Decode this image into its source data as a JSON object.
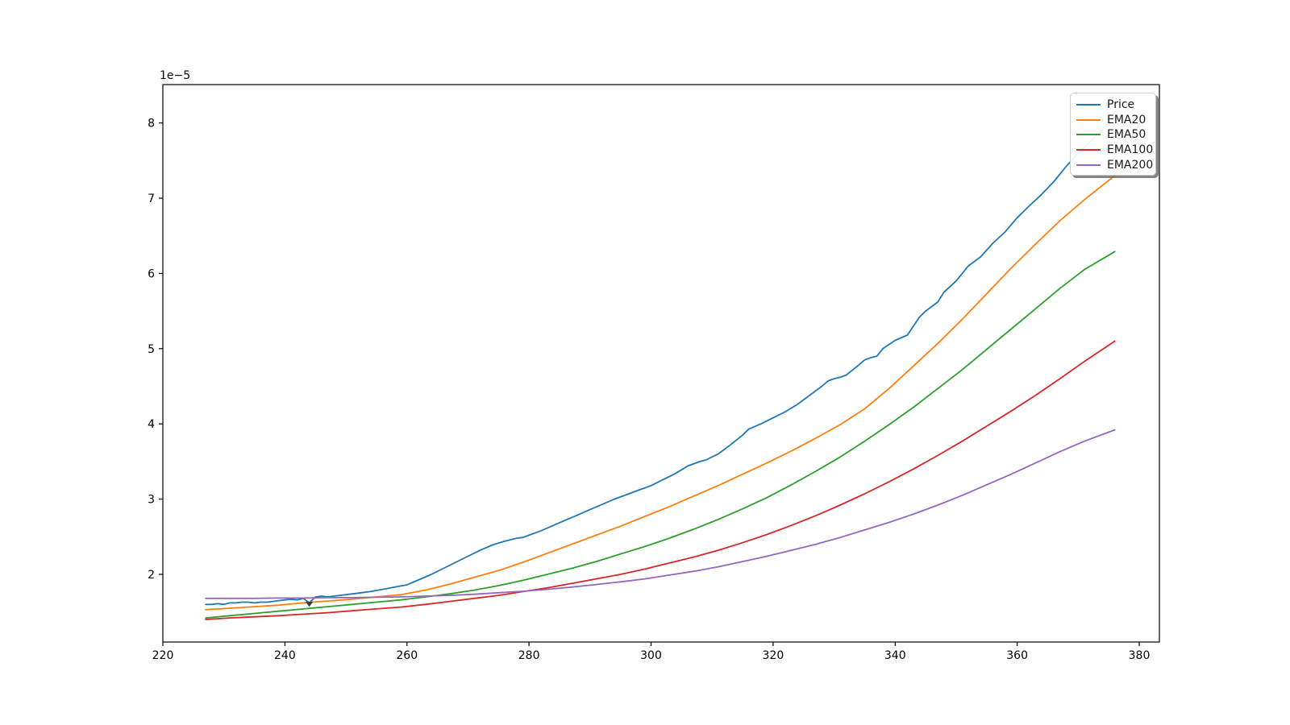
{
  "figure": {
    "background": "#ffffff",
    "spine_color": "#000000",
    "tick_color": "#000000",
    "offset_label": "1e−5"
  },
  "legend": {
    "items": [
      {
        "label": "Price",
        "color": "#1f77b4"
      },
      {
        "label": "EMA20",
        "color": "#ff7f0e"
      },
      {
        "label": "EMA50",
        "color": "#2ca02c"
      },
      {
        "label": "EMA100",
        "color": "#d62728"
      },
      {
        "label": "EMA200",
        "color": "#9467bd"
      }
    ],
    "position": "upper right"
  },
  "chart_data": {
    "type": "line",
    "title": "",
    "xlabel": "",
    "ylabel": "",
    "y_scale_factor": "1e-5",
    "grid": false,
    "legend_position": "upper right",
    "xlim": [
      220,
      383.3
    ],
    "ylim": [
      1.1,
      8.51
    ],
    "xticks": [
      220,
      240,
      260,
      280,
      300,
      320,
      340,
      360,
      380
    ],
    "yticks": [
      2,
      3,
      4,
      5,
      6,
      7,
      8
    ],
    "xtick_labels": [
      "220",
      "240",
      "260",
      "280",
      "300",
      "320",
      "340",
      "360",
      "380"
    ],
    "ytick_labels": [
      "2",
      "3",
      "4",
      "5",
      "6",
      "7",
      "8"
    ],
    "marker": {
      "type": "triangle-down",
      "color": "#3a3a3a",
      "x": 244,
      "y": 1.615
    },
    "series": [
      {
        "name": "Price",
        "color": "#1f77b4",
        "width": 1.8,
        "points": [
          [
            227,
            1.6
          ],
          [
            228,
            1.6
          ],
          [
            229,
            1.61
          ],
          [
            230,
            1.6
          ],
          [
            231,
            1.62
          ],
          [
            232,
            1.62
          ],
          [
            233,
            1.63
          ],
          [
            234,
            1.63
          ],
          [
            235,
            1.62
          ],
          [
            236,
            1.63
          ],
          [
            237,
            1.63
          ],
          [
            238,
            1.64
          ],
          [
            239,
            1.65
          ],
          [
            240,
            1.66
          ],
          [
            241,
            1.67
          ],
          [
            242,
            1.66
          ],
          [
            243,
            1.68
          ],
          [
            244,
            1.62
          ],
          [
            245,
            1.7
          ],
          [
            246,
            1.71
          ],
          [
            247,
            1.7
          ],
          [
            248,
            1.71
          ],
          [
            249,
            1.72
          ],
          [
            250,
            1.73
          ],
          [
            252,
            1.75
          ],
          [
            254,
            1.77
          ],
          [
            256,
            1.8
          ],
          [
            258,
            1.83
          ],
          [
            260,
            1.86
          ],
          [
            262,
            1.93
          ],
          [
            264,
            2.0
          ],
          [
            266,
            2.08
          ],
          [
            268,
            2.16
          ],
          [
            270,
            2.24
          ],
          [
            272,
            2.32
          ],
          [
            274,
            2.39
          ],
          [
            276,
            2.44
          ],
          [
            278,
            2.48
          ],
          [
            279,
            2.49
          ],
          [
            280,
            2.52
          ],
          [
            282,
            2.58
          ],
          [
            284,
            2.65
          ],
          [
            286,
            2.72
          ],
          [
            288,
            2.79
          ],
          [
            290,
            2.86
          ],
          [
            292,
            2.93
          ],
          [
            294,
            3.0
          ],
          [
            296,
            3.06
          ],
          [
            298,
            3.12
          ],
          [
            300,
            3.18
          ],
          [
            302,
            3.26
          ],
          [
            304,
            3.34
          ],
          [
            306,
            3.44
          ],
          [
            308,
            3.5
          ],
          [
            309,
            3.52
          ],
          [
            311,
            3.6
          ],
          [
            313,
            3.72
          ],
          [
            315,
            3.85
          ],
          [
            316,
            3.93
          ],
          [
            318,
            4.0
          ],
          [
            320,
            4.08
          ],
          [
            322,
            4.16
          ],
          [
            324,
            4.26
          ],
          [
            326,
            4.38
          ],
          [
            328,
            4.5
          ],
          [
            329,
            4.57
          ],
          [
            330,
            4.6
          ],
          [
            331,
            4.62
          ],
          [
            332,
            4.65
          ],
          [
            334,
            4.78
          ],
          [
            335,
            4.85
          ],
          [
            336,
            4.88
          ],
          [
            337,
            4.9
          ],
          [
            338,
            5.0
          ],
          [
            340,
            5.11
          ],
          [
            342,
            5.18
          ],
          [
            344,
            5.42
          ],
          [
            345,
            5.5
          ],
          [
            347,
            5.62
          ],
          [
            348,
            5.75
          ],
          [
            350,
            5.9
          ],
          [
            352,
            6.1
          ],
          [
            354,
            6.22
          ],
          [
            356,
            6.4
          ],
          [
            358,
            6.55
          ],
          [
            360,
            6.74
          ],
          [
            362,
            6.9
          ],
          [
            364,
            7.05
          ],
          [
            366,
            7.22
          ],
          [
            368,
            7.42
          ],
          [
            370,
            7.6
          ],
          [
            372,
            7.75
          ],
          [
            374,
            7.92
          ],
          [
            376,
            8.08
          ]
        ]
      },
      {
        "name": "EMA20",
        "color": "#ff7f0e",
        "width": 1.8,
        "points": [
          [
            227,
            1.53
          ],
          [
            231,
            1.55
          ],
          [
            235,
            1.57
          ],
          [
            239,
            1.59
          ],
          [
            243,
            1.62
          ],
          [
            247,
            1.645
          ],
          [
            251,
            1.67
          ],
          [
            255,
            1.7
          ],
          [
            259,
            1.73
          ],
          [
            263,
            1.79
          ],
          [
            267,
            1.87
          ],
          [
            271,
            1.96
          ],
          [
            275,
            2.05
          ],
          [
            279,
            2.16
          ],
          [
            283,
            2.28
          ],
          [
            287,
            2.4
          ],
          [
            291,
            2.52
          ],
          [
            295,
            2.64
          ],
          [
            299,
            2.77
          ],
          [
            303,
            2.9
          ],
          [
            307,
            3.04
          ],
          [
            311,
            3.18
          ],
          [
            315,
            3.33
          ],
          [
            319,
            3.48
          ],
          [
            323,
            3.64
          ],
          [
            327,
            3.81
          ],
          [
            331,
            3.99
          ],
          [
            335,
            4.2
          ],
          [
            339,
            4.47
          ],
          [
            343,
            4.77
          ],
          [
            347,
            5.07
          ],
          [
            351,
            5.39
          ],
          [
            355,
            5.73
          ],
          [
            359,
            6.07
          ],
          [
            363,
            6.39
          ],
          [
            367,
            6.7
          ],
          [
            371,
            6.98
          ],
          [
            376,
            7.3
          ]
        ]
      },
      {
        "name": "EMA50",
        "color": "#2ca02c",
        "width": 1.8,
        "points": [
          [
            227,
            1.42
          ],
          [
            231,
            1.45
          ],
          [
            235,
            1.48
          ],
          [
            239,
            1.51
          ],
          [
            243,
            1.54
          ],
          [
            247,
            1.57
          ],
          [
            251,
            1.6
          ],
          [
            255,
            1.63
          ],
          [
            259,
            1.66
          ],
          [
            263,
            1.7
          ],
          [
            267,
            1.74
          ],
          [
            271,
            1.79
          ],
          [
            275,
            1.85
          ],
          [
            279,
            1.92
          ],
          [
            283,
            2.0
          ],
          [
            287,
            2.08
          ],
          [
            291,
            2.17
          ],
          [
            295,
            2.27
          ],
          [
            299,
            2.37
          ],
          [
            303,
            2.48
          ],
          [
            307,
            2.6
          ],
          [
            311,
            2.73
          ],
          [
            315,
            2.87
          ],
          [
            319,
            3.02
          ],
          [
            323,
            3.19
          ],
          [
            327,
            3.37
          ],
          [
            331,
            3.56
          ],
          [
            335,
            3.77
          ],
          [
            339,
            3.99
          ],
          [
            343,
            4.22
          ],
          [
            347,
            4.47
          ],
          [
            351,
            4.72
          ],
          [
            355,
            4.99
          ],
          [
            359,
            5.26
          ],
          [
            363,
            5.53
          ],
          [
            367,
            5.8
          ],
          [
            371,
            6.05
          ],
          [
            376,
            6.29
          ]
        ]
      },
      {
        "name": "EMA100",
        "color": "#d62728",
        "width": 1.8,
        "points": [
          [
            227,
            1.4
          ],
          [
            231,
            1.42
          ],
          [
            235,
            1.435
          ],
          [
            239,
            1.45
          ],
          [
            243,
            1.47
          ],
          [
            247,
            1.49
          ],
          [
            251,
            1.515
          ],
          [
            255,
            1.54
          ],
          [
            259,
            1.565
          ],
          [
            263,
            1.6
          ],
          [
            267,
            1.64
          ],
          [
            271,
            1.68
          ],
          [
            275,
            1.72
          ],
          [
            279,
            1.77
          ],
          [
            283,
            1.82
          ],
          [
            287,
            1.88
          ],
          [
            291,
            1.94
          ],
          [
            295,
            2.0
          ],
          [
            299,
            2.07
          ],
          [
            303,
            2.15
          ],
          [
            307,
            2.23
          ],
          [
            311,
            2.32
          ],
          [
            315,
            2.42
          ],
          [
            319,
            2.53
          ],
          [
            323,
            2.65
          ],
          [
            327,
            2.78
          ],
          [
            331,
            2.92
          ],
          [
            335,
            3.07
          ],
          [
            339,
            3.23
          ],
          [
            343,
            3.4
          ],
          [
            347,
            3.58
          ],
          [
            351,
            3.77
          ],
          [
            355,
            3.97
          ],
          [
            359,
            4.17
          ],
          [
            363,
            4.38
          ],
          [
            367,
            4.6
          ],
          [
            371,
            4.83
          ],
          [
            376,
            5.1
          ]
        ]
      },
      {
        "name": "EMA200",
        "color": "#9467bd",
        "width": 1.8,
        "points": [
          [
            227,
            1.68
          ],
          [
            231,
            1.68
          ],
          [
            235,
            1.68
          ],
          [
            239,
            1.685
          ],
          [
            243,
            1.685
          ],
          [
            247,
            1.69
          ],
          [
            251,
            1.69
          ],
          [
            255,
            1.695
          ],
          [
            259,
            1.7
          ],
          [
            263,
            1.71
          ],
          [
            267,
            1.72
          ],
          [
            271,
            1.735
          ],
          [
            275,
            1.755
          ],
          [
            279,
            1.775
          ],
          [
            283,
            1.8
          ],
          [
            287,
            1.83
          ],
          [
            291,
            1.865
          ],
          [
            295,
            1.9
          ],
          [
            299,
            1.94
          ],
          [
            303,
            1.99
          ],
          [
            307,
            2.04
          ],
          [
            311,
            2.1
          ],
          [
            315,
            2.17
          ],
          [
            319,
            2.24
          ],
          [
            323,
            2.32
          ],
          [
            327,
            2.4
          ],
          [
            331,
            2.49
          ],
          [
            335,
            2.59
          ],
          [
            339,
            2.69
          ],
          [
            343,
            2.8
          ],
          [
            347,
            2.92
          ],
          [
            351,
            3.05
          ],
          [
            355,
            3.19
          ],
          [
            359,
            3.33
          ],
          [
            363,
            3.48
          ],
          [
            367,
            3.63
          ],
          [
            371,
            3.77
          ],
          [
            376,
            3.92
          ]
        ]
      }
    ]
  }
}
